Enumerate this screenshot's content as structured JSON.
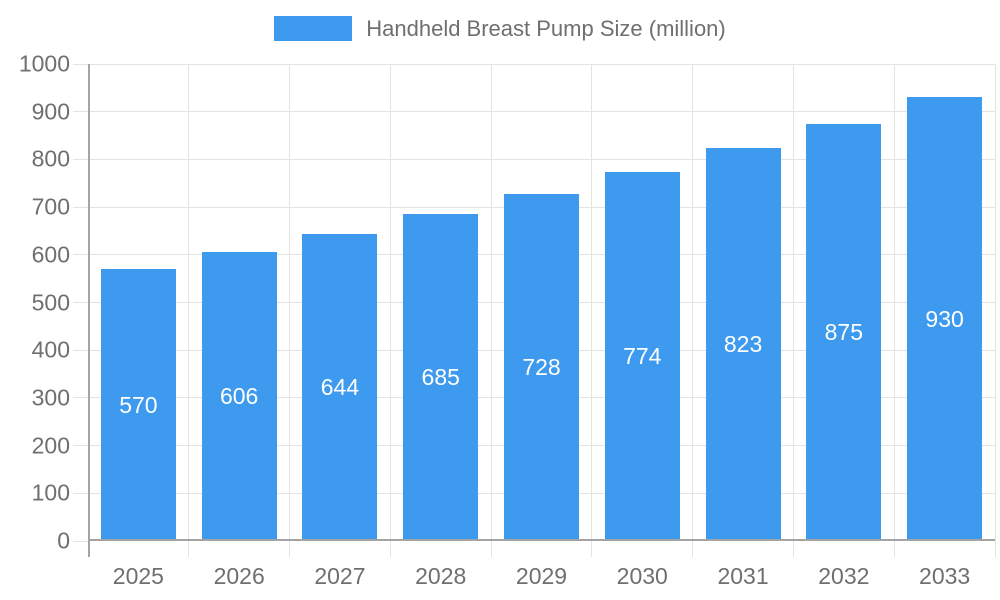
{
  "chart_data": {
    "type": "bar",
    "title": "Handheld Breast Pump Size (million)",
    "categories": [
      "2025",
      "2026",
      "2027",
      "2028",
      "2029",
      "2030",
      "2031",
      "2032",
      "2033"
    ],
    "series": [
      {
        "name": "Handheld Breast Pump Size (million)",
        "values": [
          570,
          606,
          644,
          685,
          728,
          774,
          823,
          875,
          930
        ]
      }
    ],
    "xlabel": "",
    "ylabel": "",
    "ylim": [
      0,
      1000
    ],
    "y_tick_step": 100,
    "y_tick_labels": [
      "0",
      "100",
      "200",
      "300",
      "400",
      "500",
      "600",
      "700",
      "800",
      "900",
      "1000"
    ],
    "grid": true,
    "legend_position": "top-center",
    "value_label_position": "inside-center",
    "colors": {
      "bar": "#3d9aee",
      "bar_label": "#ffffff",
      "axis_text": "#6f6f6f",
      "grid_line": "#e3e3e3",
      "axis_line": "#a3a3a3",
      "background": "#ffffff"
    }
  }
}
